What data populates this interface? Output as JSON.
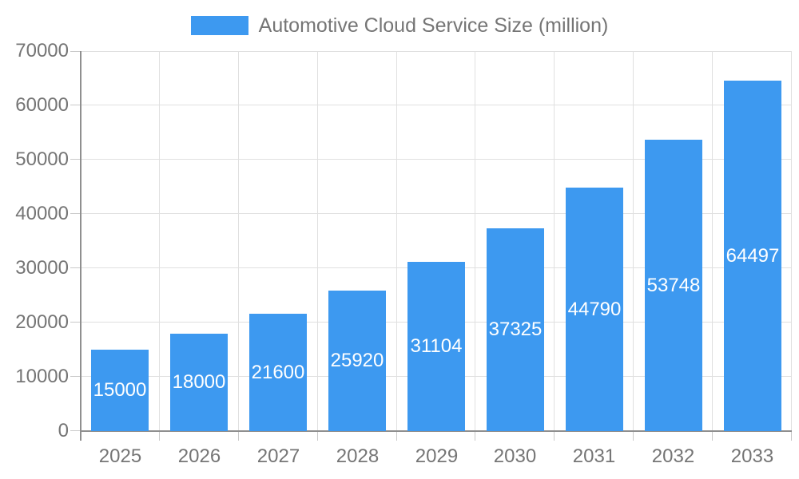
{
  "legend": {
    "label": "Automotive Cloud Service Size (million)"
  },
  "chart_data": {
    "type": "bar",
    "title": "Automotive Cloud Service Size (million)",
    "categories": [
      "2025",
      "2026",
      "2027",
      "2028",
      "2029",
      "2030",
      "2031",
      "2032",
      "2033"
    ],
    "values": [
      15000,
      18000,
      21600,
      25920,
      31104,
      37325,
      44790,
      53748,
      64497
    ],
    "xlabel": "",
    "ylabel": "",
    "ylim": [
      0,
      70000
    ],
    "yticks": [
      0,
      10000,
      20000,
      30000,
      40000,
      50000,
      60000,
      70000
    ],
    "grid": true,
    "legend_position": "top-center",
    "bar_value_labels": true,
    "colors": {
      "bar": "#3D99F0",
      "bar_label": "#FFFFFF",
      "axis_text": "#757575",
      "axis_line": "#8F8F8F",
      "gridline": "#E0E0E0",
      "tick": "#C9C9C9",
      "background": "#FFFFFF"
    }
  }
}
